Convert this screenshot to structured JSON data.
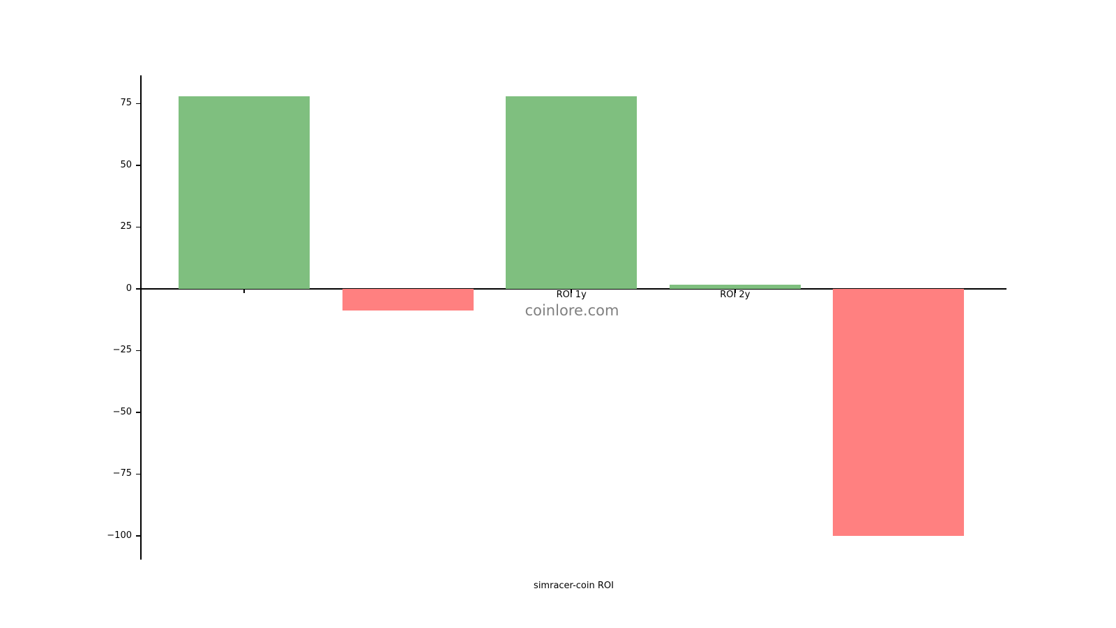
{
  "chart_data": {
    "type": "bar",
    "title": "simracer-coin ROI",
    "watermark": "coinlore.com",
    "categories": [
      "",
      "",
      "ROI 1y",
      "ROI 2y",
      ""
    ],
    "values": [
      78,
      -8.8,
      78,
      1.8,
      -100
    ],
    "bar_colors": [
      "#7fbf7f",
      "#ff8080",
      "#7fbf7f",
      "#7fbf7f",
      "#ff8080"
    ],
    "positive_color": "#7fbf7f",
    "negative_color": "#ff8080",
    "xlabel": "",
    "ylabel": "",
    "ylim": [
      -109.6,
      86.4
    ],
    "yticks": [
      {
        "value": 75,
        "label": "75"
      },
      {
        "value": 50,
        "label": "50"
      },
      {
        "value": 25,
        "label": "25"
      },
      {
        "value": 0,
        "label": "0"
      },
      {
        "value": -25,
        "label": "−25"
      },
      {
        "value": -50,
        "label": "−50"
      },
      {
        "value": -75,
        "label": "−75"
      },
      {
        "value": -100,
        "label": "−100"
      }
    ],
    "grid": false,
    "legend": "none",
    "axis_color": "#000000",
    "tick_label_color": "#000000",
    "watermark_color": "#808080",
    "title_color": "#000000"
  }
}
